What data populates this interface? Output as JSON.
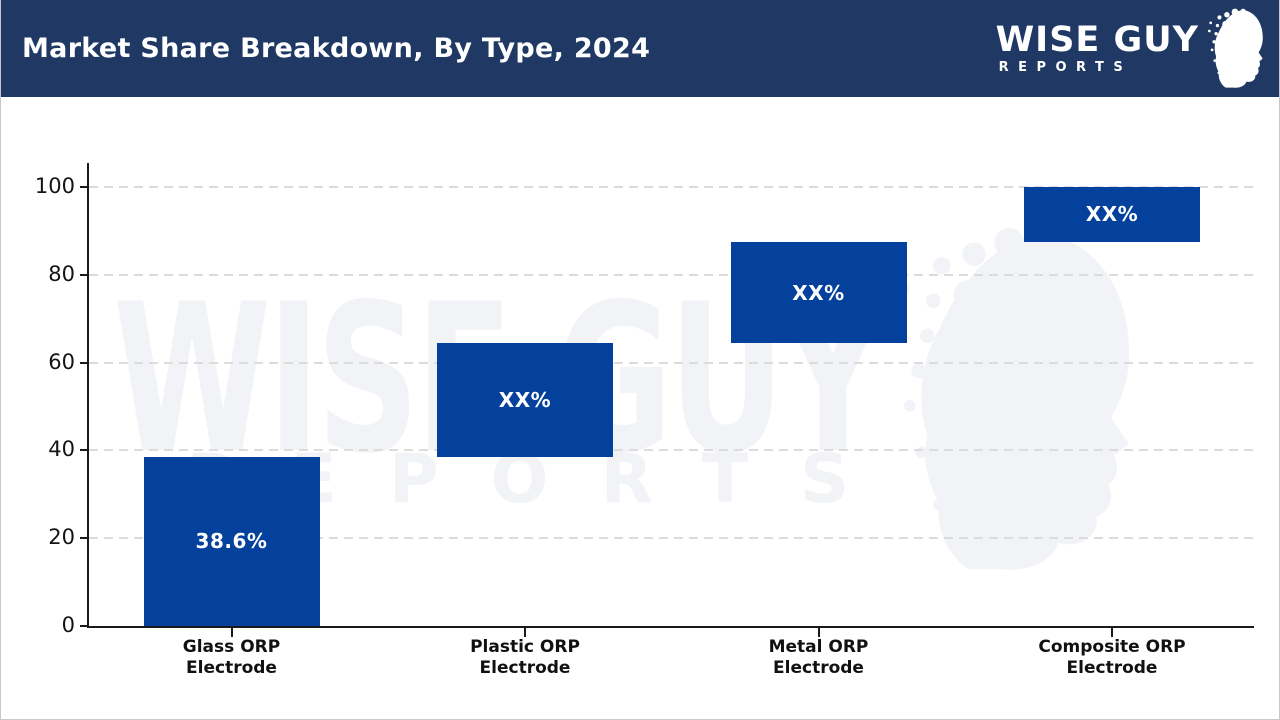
{
  "header": {
    "title": "Market Share Breakdown, By Type, 2024",
    "logo": {
      "name": "WISE GUY",
      "subtitle": "REPORTS"
    }
  },
  "watermark": {
    "name": "WISE GUY",
    "subtitle": "REPORTS"
  },
  "colors": {
    "header_bg": "#1f3864",
    "bar_fill": "#04419c",
    "bar_label": "#ffffff",
    "grid_line": "#dcdcdc",
    "axis_line": "#1a1a1a",
    "tick_label": "#141414",
    "watermark": "#f2f3f6",
    "page_border": "#c8c8c8"
  },
  "chart_data": {
    "type": "bar",
    "subtype": "waterfall-segments",
    "title": "Market Share Breakdown, By Type, 2024",
    "xlabel": "",
    "ylabel": "",
    "ylim": [
      0,
      105
    ],
    "yticks": [
      0,
      20,
      40,
      60,
      80,
      100
    ],
    "grid": "horizontal-dashed",
    "legend": "none",
    "categories": [
      "Glass ORP Electrode",
      "Plastic ORP Electrode",
      "Metal ORP Electrode",
      "Composite ORP Electrode"
    ],
    "category_lines": [
      [
        "Glass ORP",
        "Electrode"
      ],
      [
        "Plastic ORP",
        "Electrode"
      ],
      [
        "Metal ORP",
        "Electrode"
      ],
      [
        "Composite ORP",
        "Electrode"
      ]
    ],
    "segments": [
      {
        "category": "Glass ORP Electrode",
        "start": 0,
        "end": 38.6,
        "value": 38.6,
        "label": "38.6%"
      },
      {
        "category": "Plastic ORP Electrode",
        "start": 38.6,
        "end": 64.4,
        "value": 25.8,
        "label": "XX%"
      },
      {
        "category": "Metal ORP Electrode",
        "start": 64.4,
        "end": 87.5,
        "value": 23.1,
        "label": "XX%"
      },
      {
        "category": "Composite ORP Electrode",
        "start": 87.5,
        "end": 100,
        "value": 12.5,
        "label": "XX%"
      }
    ]
  }
}
